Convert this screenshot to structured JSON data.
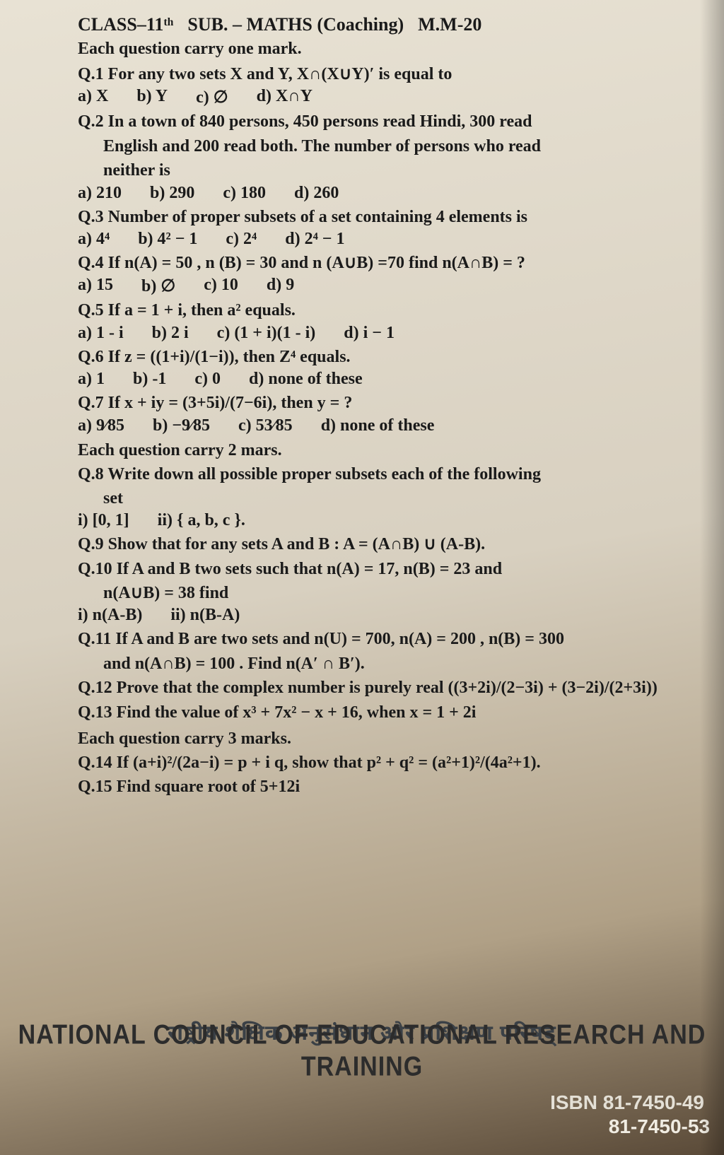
{
  "header": {
    "class": "CLASS–11ᵗʰ",
    "subject": "SUB. – MATHS (Coaching)",
    "marks": "M.M-20"
  },
  "section1_title": "Each question carry one mark.",
  "q1": {
    "text": "Q.1 For any two sets X and Y, X∩(X∪Y)′ is equal to",
    "a": "a) X",
    "b": "b) Y",
    "c": "c) ∅",
    "d": "d) X∩Y"
  },
  "q2": {
    "l1": "Q.2 In a town of 840 persons, 450 persons read Hindi, 300 read",
    "l2": "English and 200 read both. The number of persons who read",
    "l3": "neither is",
    "a": "a) 210",
    "b": "b) 290",
    "c": "c) 180",
    "d": "d) 260"
  },
  "q3": {
    "text": "Q.3 Number of proper subsets of a set containing 4 elements is",
    "a": "a) 4⁴",
    "b": "b) 4² − 1",
    "c": "c) 2⁴",
    "d": "d) 2⁴ − 1"
  },
  "q4": {
    "text": "Q.4 If n(A) = 50 , n (B) = 30 and n (A∪B) =70 find n(A∩B) = ?",
    "a": "a) 15",
    "b": "b) ∅",
    "c": "c) 10",
    "d": "d) 9"
  },
  "q5": {
    "text": "Q.5 If a = 1 + i, then a² equals.",
    "a": "a) 1 - i",
    "b": "b) 2 i",
    "c": "c) (1 + i)(1 - i)",
    "d": "d) i − 1"
  },
  "q6": {
    "text": "Q.6 If z = ((1+i)/(1−i)), then Z⁴ equals.",
    "a": "a) 1",
    "b": "b) -1",
    "c": "c) 0",
    "d": "d) none of these"
  },
  "q7": {
    "text": "Q.7 If x + iy = (3+5i)/(7−6i), then y = ?",
    "a": "a) 9⁄85",
    "b": "b) −9⁄85",
    "c": "c) 53⁄85",
    "d": "d) none of these"
  },
  "section2_title": "Each question carry 2 mars.",
  "q8": {
    "l1": "Q.8 Write down all possible proper subsets each of the following",
    "l2": "set",
    "i": "i) [0, 1]",
    "ii": "ii) { a, b, c }."
  },
  "q9": "Q.9 Show that for any sets A and B :  A = (A∩B) ∪ (A-B).",
  "q10": {
    "l1": "Q.10 If A and B two sets such that n(A) = 17, n(B) = 23 and",
    "l2": "n(A∪B) = 38 find",
    "i": "i) n(A-B)",
    "ii": "ii) n(B-A)"
  },
  "q11": {
    "l1": "Q.11 If A and B are two sets and n(U) = 700, n(A) = 200 , n(B) = 300",
    "l2": "and n(A∩B) = 100 . Find n(A′ ∩ B′)."
  },
  "q12": "Q.12 Prove that the complex number is purely real ((3+2i)/(2−3i) + (3−2i)/(2+3i))",
  "q13": "Q.13 Find the value of x³ + 7x² − x + 16, when x = 1 + 2i",
  "section3_title": "Each question carry 3 marks.",
  "q14": "Q.14 If (a+i)²/(2a−i) = p + i q, show that p² + q² = (a²+1)²/(4a²+1).",
  "q15": "Q.15 Find square root of 5+12i",
  "footer": {
    "hindi": "राष्ट्रीय शैक्षिक अनुसंधान और प्रशिक्षण परिषद्",
    "ncert": "NATIONAL COUNCIL OF EDUCATIONAL RESEARCH AND TRAINING",
    "isbn1": "ISBN 81-7450-49",
    "isbn2": "81-7450-53"
  }
}
